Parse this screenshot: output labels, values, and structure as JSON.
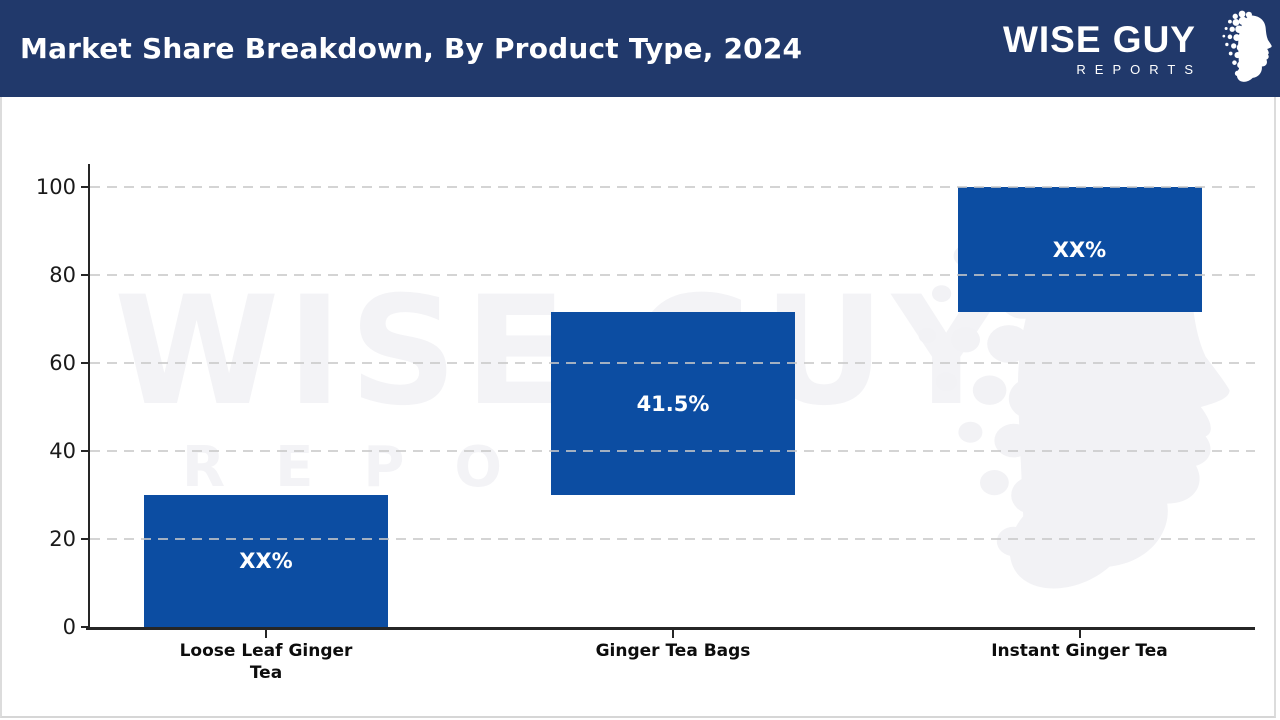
{
  "header": {
    "title": "Market Share Breakdown, By Product Type, 2024",
    "background_color": "#21396B",
    "logo": {
      "line1": "WISE GUY",
      "line2": "REPORTS"
    }
  },
  "watermark": {
    "line1": "WISE GUY",
    "line2": "REPORTS"
  },
  "chart_data": {
    "type": "bar",
    "subtype": "floating-waterfall-segments",
    "title": "Market Share Breakdown, By Product Type, 2024",
    "categories": [
      "Loose Leaf Ginger Tea",
      "Ginger Tea Bags",
      "Instant Ginger Tea"
    ],
    "segments": [
      {
        "category": "Loose Leaf Ginger Tea",
        "start": 0,
        "end": 30,
        "label": "XX%"
      },
      {
        "category": "Ginger Tea Bags",
        "start": 30,
        "end": 71.5,
        "label": "41.5%"
      },
      {
        "category": "Instant Ginger Tea",
        "start": 71.5,
        "end": 100,
        "label": "XX%"
      }
    ],
    "yticks": [
      0,
      20,
      40,
      60,
      80,
      100
    ],
    "ylim": [
      0,
      100
    ],
    "xlabel": "",
    "ylabel": "",
    "grid": "horizontal-dashed",
    "legend": "none",
    "bar_color": "#0C4DA2",
    "bar_label_color": "#ffffff",
    "axis_color": "#262626",
    "gridline_color": "#c9c9c9"
  }
}
